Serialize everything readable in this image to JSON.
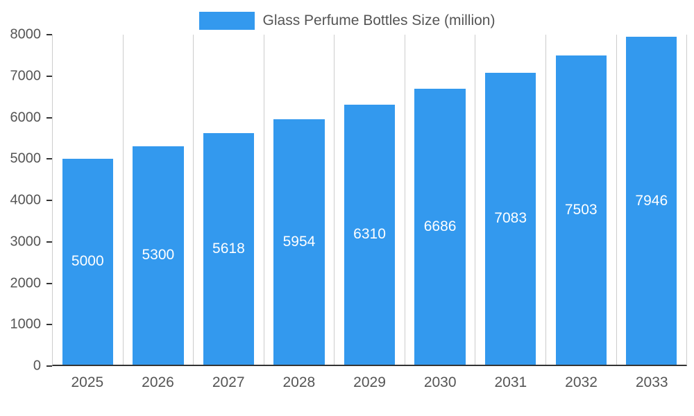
{
  "chart_data": {
    "type": "bar",
    "title": "Glass Perfume Bottles Size (million)",
    "categories": [
      "2025",
      "2026",
      "2027",
      "2028",
      "2029",
      "2030",
      "2031",
      "2032",
      "2033"
    ],
    "values": [
      5000,
      5300,
      5618,
      5954,
      6310,
      6686,
      7083,
      7503,
      7946
    ],
    "xlabel": "",
    "ylabel": "",
    "ylim": [
      0,
      8000
    ],
    "ytick_step": 1000,
    "grid": "vertical",
    "legend_position": "top",
    "data_labels": "inside-center-white",
    "colors": {
      "bar": "#3399ee",
      "axis_text": "#555555",
      "grid_line": "#cccccc",
      "axis_line": "#333333",
      "label_text": "#ffffff"
    }
  }
}
